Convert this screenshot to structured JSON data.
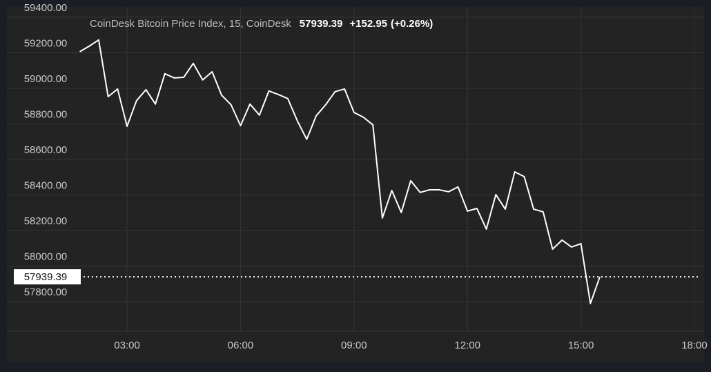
{
  "chart_data": {
    "type": "line",
    "title": "CoinDesk Bitcoin Price Index, 15, CoinDesk",
    "last_price": 57939.39,
    "change": "+152.95",
    "change_pct": "(+0.26%)",
    "x": [
      1.75,
      2.0,
      2.25,
      2.5,
      2.75,
      3.0,
      3.25,
      3.5,
      3.75,
      4.0,
      4.25,
      4.5,
      4.75,
      5.0,
      5.25,
      5.5,
      5.75,
      6.0,
      6.25,
      6.5,
      6.75,
      7.0,
      7.25,
      7.5,
      7.75,
      8.0,
      8.25,
      8.5,
      8.75,
      9.0,
      9.25,
      9.5,
      9.75,
      10.0,
      10.25,
      10.5,
      10.75,
      11.0,
      11.25,
      11.5,
      11.75,
      12.0,
      12.25,
      12.5,
      12.75,
      13.0,
      13.25,
      13.5,
      13.75,
      14.0,
      14.25,
      14.5,
      14.75,
      15.0,
      15.25,
      15.5
    ],
    "series": [
      {
        "color": "#ffffff",
        "values": [
          59206,
          59237,
          59272,
          58953,
          58996,
          58786,
          58930,
          58992,
          58911,
          59082,
          59058,
          59062,
          59140,
          59047,
          59093,
          58961,
          58907,
          58790,
          58911,
          58849,
          58985,
          58965,
          58942,
          58818,
          58713,
          58845,
          58907,
          58981,
          58996,
          58864,
          58837,
          58794,
          58270,
          58425,
          58301,
          58480,
          58414,
          58429,
          58429,
          58418,
          58445,
          58309,
          58324,
          58208,
          58402,
          58320,
          58530,
          58503,
          58320,
          58305,
          58095,
          58146,
          58107,
          58126,
          57789,
          57939.39
        ]
      }
    ],
    "xlim": [
      1.74,
      18.11
    ],
    "xticks": [
      {
        "value": 3,
        "label": "03:00"
      },
      {
        "value": 6,
        "label": "06:00"
      },
      {
        "value": 9,
        "label": "09:00"
      },
      {
        "value": 12,
        "label": "12:00"
      },
      {
        "value": 15,
        "label": "15:00"
      },
      {
        "value": 18,
        "label": "18:00"
      }
    ],
    "ylim": [
      57633,
      59450
    ],
    "yticks": [
      {
        "value": 57800,
        "label": "57800.00"
      },
      {
        "value": 58000,
        "label": "58000.00"
      },
      {
        "value": 58200,
        "label": "58200.00"
      },
      {
        "value": 58400,
        "label": "58400.00"
      },
      {
        "value": 58600,
        "label": "58600.00"
      },
      {
        "value": 58800,
        "label": "58800.00"
      },
      {
        "value": 59000,
        "label": "59000.00"
      },
      {
        "value": 59200,
        "label": "59200.00"
      },
      {
        "value": 59400,
        "label": "59400.00"
      }
    ],
    "grid": true
  }
}
